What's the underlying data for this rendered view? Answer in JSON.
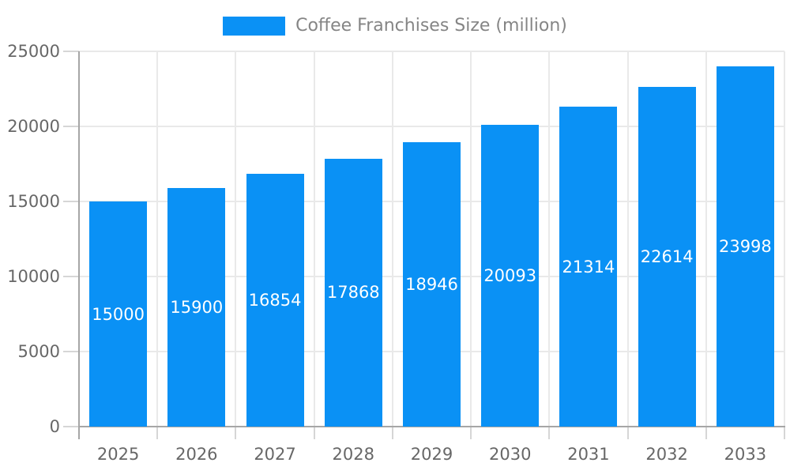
{
  "legend": {
    "label": "Coffee Franchises Size (million)"
  },
  "chart_data": {
    "type": "bar",
    "title": "",
    "series_name": "Coffee Franchises Size (million)",
    "categories": [
      "2025",
      "2026",
      "2027",
      "2028",
      "2029",
      "2030",
      "2031",
      "2032",
      "2033"
    ],
    "values": [
      15000,
      15900,
      16854,
      17868,
      18946,
      20093,
      21314,
      22614,
      23998
    ],
    "xlabel": "",
    "ylabel": "",
    "ylim": [
      0,
      25000
    ],
    "yticks": [
      0,
      5000,
      10000,
      15000,
      20000,
      25000
    ],
    "grid": true,
    "legend_position": "top-center",
    "value_labels_position": "inside-center",
    "colors": {
      "bar": "#0a91f5",
      "value_label": "#ffffff",
      "tick_label": "#676767",
      "legend_text": "#858585",
      "gridline": "#e9e9e9",
      "tick_mark": "#d6d6d6",
      "axis_line": "#a6a6a6",
      "background": "#ffffff"
    }
  }
}
